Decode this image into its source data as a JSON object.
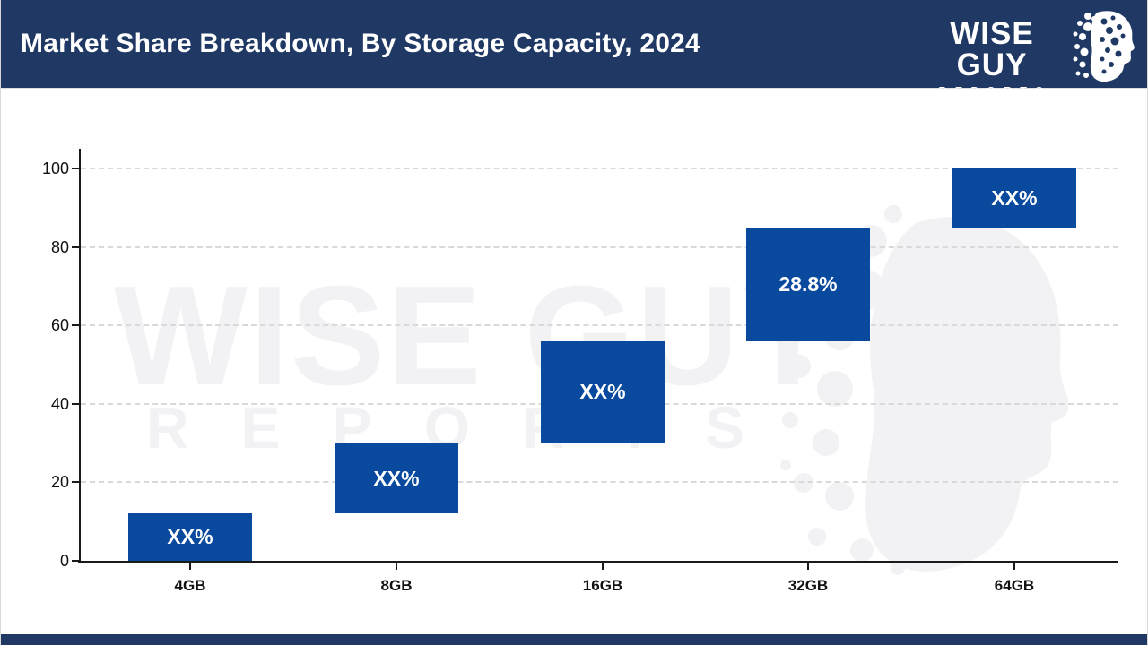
{
  "header": {
    "title": "Market Share Breakdown, By Storage Capacity, 2024",
    "logo": {
      "line1": "WISE GUY",
      "line2": "REPORTS"
    }
  },
  "watermark": {
    "line1": "WISE GUY",
    "line2": "REPORTS"
  },
  "colors": {
    "header_bg": "#1f3864",
    "footer_bg": "#1f3864",
    "bar": "#0a4a9e",
    "bar_label": "#ffffff",
    "grid": "#d9d9d9",
    "axis": "#1a1a1a",
    "watermark": "#f2f2f4"
  },
  "chart_data": {
    "type": "bar",
    "subtype": "floating-waterfall",
    "title": "Market Share Breakdown, By Storage Capacity, 2024",
    "categories": [
      "4GB",
      "8GB",
      "16GB",
      "32GB",
      "64GB"
    ],
    "segments": [
      {
        "category": "4GB",
        "start": 0,
        "end": 12,
        "value": 12,
        "label": "XX%"
      },
      {
        "category": "8GB",
        "start": 12,
        "end": 30,
        "value": 18,
        "label": "XX%"
      },
      {
        "category": "16GB",
        "start": 30,
        "end": 56,
        "value": 26,
        "label": "XX%"
      },
      {
        "category": "32GB",
        "start": 56,
        "end": 84.8,
        "value": 28.8,
        "label": "28.8%"
      },
      {
        "category": "64GB",
        "start": 84.8,
        "end": 100,
        "value": 15.2,
        "label": "XX%"
      }
    ],
    "y_ticks": [
      0,
      20,
      40,
      60,
      80,
      100
    ],
    "ylim": [
      0,
      105
    ],
    "xlabel": "",
    "ylabel": "",
    "grid": "dashed-horizontal",
    "legend": "none"
  }
}
